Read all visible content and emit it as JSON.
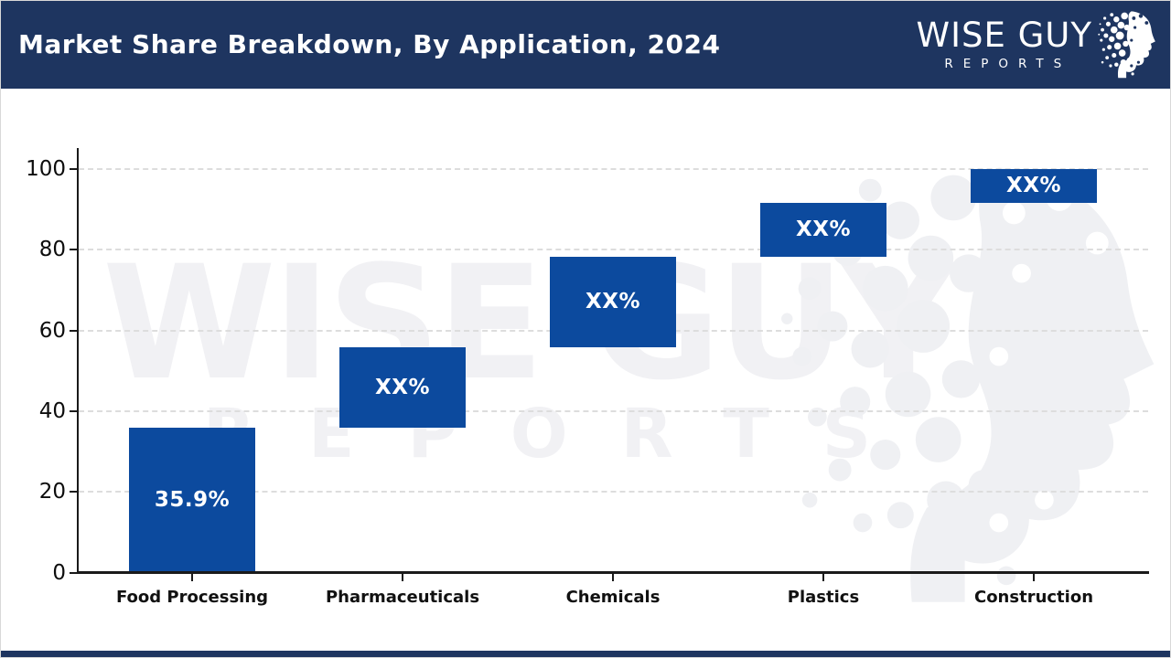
{
  "header": {
    "title": "Market Share Breakdown, By Application, 2024",
    "logo": {
      "line1": "WISE GUY",
      "line2": "REPORTS"
    }
  },
  "watermark": {
    "line1": "WISE GUY",
    "line2": "REPORTS"
  },
  "colors": {
    "header_bg": "#1e3560",
    "bar": "#0c4a9e",
    "axis": "#1a1a1a",
    "grid": "#dddddd",
    "watermark": "#f1f1f4"
  },
  "chart_data": {
    "type": "bar",
    "subtype": "waterfall",
    "title": "Market Share Breakdown, By Application, 2024",
    "categories": [
      "Food Processing",
      "Pharmaceuticals",
      "Chemicals",
      "Plastics",
      "Construction"
    ],
    "bars": [
      {
        "category": "Food Processing",
        "label": "35.9%",
        "start": 0,
        "end": 35.9
      },
      {
        "category": "Pharmaceuticals",
        "label": "XX%",
        "start": 35.9,
        "end": 55.9
      },
      {
        "category": "Chemicals",
        "label": "XX%",
        "start": 55.9,
        "end": 78.3
      },
      {
        "category": "Plastics",
        "label": "XX%",
        "start": 78.3,
        "end": 91.7
      },
      {
        "category": "Construction",
        "label": "XX%",
        "start": 91.7,
        "end": 100
      }
    ],
    "xlabel": "",
    "ylabel": "",
    "ylim": [
      0,
      100
    ],
    "yticks": [
      0,
      20,
      40,
      60,
      80,
      100
    ],
    "grid": "horizontal-dashed",
    "legend": "none",
    "bar_color": "#0c4a9e",
    "bar_label_color": "#ffffff"
  }
}
